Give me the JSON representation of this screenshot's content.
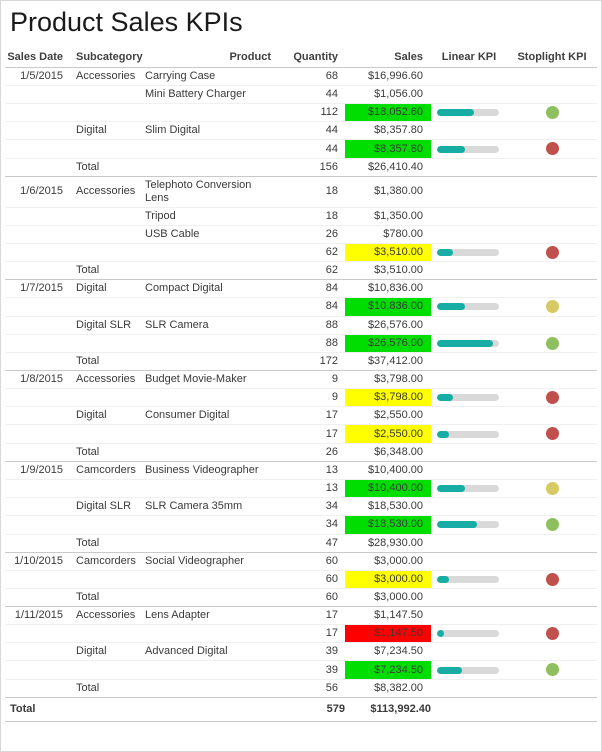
{
  "title": "Product Sales KPIs",
  "columns": [
    {
      "key": "date",
      "label": "Sales Date"
    },
    {
      "key": "subcat",
      "label": "Subcategory"
    },
    {
      "key": "product",
      "label": "Product"
    },
    {
      "key": "qty",
      "label": "Quantity"
    },
    {
      "key": "sales",
      "label": "Sales"
    },
    {
      "key": "linear",
      "label": "Linear KPI"
    },
    {
      "key": "stoplight",
      "label": "Stoplight KPI"
    }
  ],
  "colors": {
    "sales_green": "#00dd00",
    "sales_yellow": "#ffff00",
    "sales_red": "#ff0000",
    "bar_fill": "#17ada4",
    "bar_track": "#d9d9d9",
    "dot_green": "#8ec05f",
    "dot_yellow": "#d8ca63",
    "dot_red": "#c0504d"
  },
  "total_label": "Total",
  "groups": [
    {
      "date": "1/5/2015",
      "subgroups": [
        {
          "subcategory": "Accessories",
          "products": [
            {
              "name": "Carrying Case",
              "qty": "68",
              "sales": "$16,996.60"
            },
            {
              "name": "Mini Battery Charger",
              "qty": "44",
              "sales": "$1,056.00"
            }
          ],
          "subtotal": {
            "qty": "112",
            "sales": "$18,052.60",
            "sales_bg": "green",
            "bar_pct": 60,
            "dot": "green"
          }
        },
        {
          "subcategory": "Digital",
          "products": [
            {
              "name": "Slim Digital",
              "qty": "44",
              "sales": "$8,357.80"
            }
          ],
          "subtotal": {
            "qty": "44",
            "sales": "$8,357.80",
            "sales_bg": "green",
            "bar_pct": 45,
            "dot": "red"
          }
        }
      ],
      "total": {
        "qty": "156",
        "sales": "$26,410.40"
      }
    },
    {
      "date": "1/6/2015",
      "subgroups": [
        {
          "subcategory": "Accessories",
          "products": [
            {
              "name": "Telephoto Conversion Lens",
              "qty": "18",
              "sales": "$1,380.00"
            },
            {
              "name": "Tripod",
              "qty": "18",
              "sales": "$1,350.00"
            },
            {
              "name": "USB Cable",
              "qty": "26",
              "sales": "$780.00"
            }
          ],
          "subtotal": {
            "qty": "62",
            "sales": "$3,510.00",
            "sales_bg": "yellow",
            "bar_pct": 25,
            "dot": "red"
          }
        }
      ],
      "total": {
        "qty": "62",
        "sales": "$3,510.00"
      }
    },
    {
      "date": "1/7/2015",
      "subgroups": [
        {
          "subcategory": "Digital",
          "products": [
            {
              "name": "Compact Digital",
              "qty": "84",
              "sales": "$10,836.00"
            }
          ],
          "subtotal": {
            "qty": "84",
            "sales": "$10,836.00",
            "sales_bg": "green",
            "bar_pct": 45,
            "dot": "yellow"
          }
        },
        {
          "subcategory": "Digital SLR",
          "products": [
            {
              "name": "SLR Camera",
              "qty": "88",
              "sales": "$26,576.00"
            }
          ],
          "subtotal": {
            "qty": "88",
            "sales": "$26,576.00",
            "sales_bg": "green",
            "bar_pct": 90,
            "dot": "green"
          }
        }
      ],
      "total": {
        "qty": "172",
        "sales": "$37,412.00"
      }
    },
    {
      "date": "1/8/2015",
      "subgroups": [
        {
          "subcategory": "Accessories",
          "products": [
            {
              "name": "Budget Movie-Maker",
              "qty": "9",
              "sales": "$3,798.00"
            }
          ],
          "subtotal": {
            "qty": "9",
            "sales": "$3,798.00",
            "sales_bg": "yellow",
            "bar_pct": 25,
            "dot": "red"
          }
        },
        {
          "subcategory": "Digital",
          "products": [
            {
              "name": "Consumer Digital",
              "qty": "17",
              "sales": "$2,550.00"
            }
          ],
          "subtotal": {
            "qty": "17",
            "sales": "$2,550.00",
            "sales_bg": "yellow",
            "bar_pct": 20,
            "dot": "red"
          }
        }
      ],
      "total": {
        "qty": "26",
        "sales": "$6,348.00"
      }
    },
    {
      "date": "1/9/2015",
      "subgroups": [
        {
          "subcategory": "Camcorders",
          "products": [
            {
              "name": "Business Videographer",
              "qty": "13",
              "sales": "$10,400.00"
            }
          ],
          "subtotal": {
            "qty": "13",
            "sales": "$10,400.00",
            "sales_bg": "green",
            "bar_pct": 45,
            "dot": "yellow"
          }
        },
        {
          "subcategory": "Digital SLR",
          "products": [
            {
              "name": "SLR Camera 35mm",
              "qty": "34",
              "sales": "$18,530.00"
            }
          ],
          "subtotal": {
            "qty": "34",
            "sales": "$18,530.00",
            "sales_bg": "green",
            "bar_pct": 65,
            "dot": "green"
          }
        }
      ],
      "total": {
        "qty": "47",
        "sales": "$28,930.00"
      }
    },
    {
      "date": "1/10/2015",
      "subgroups": [
        {
          "subcategory": "Camcorders",
          "products": [
            {
              "name": "Social Videographer",
              "qty": "60",
              "sales": "$3,000.00"
            }
          ],
          "subtotal": {
            "qty": "60",
            "sales": "$3,000.00",
            "sales_bg": "yellow",
            "bar_pct": 20,
            "dot": "red"
          }
        }
      ],
      "total": {
        "qty": "60",
        "sales": "$3,000.00"
      }
    },
    {
      "date": "1/11/2015",
      "subgroups": [
        {
          "subcategory": "Accessories",
          "products": [
            {
              "name": "Lens Adapter",
              "qty": "17",
              "sales": "$1,147.50"
            }
          ],
          "subtotal": {
            "qty": "17",
            "sales": "$1,147.50",
            "sales_bg": "red",
            "bar_pct": 12,
            "dot": "red"
          }
        },
        {
          "subcategory": "Digital",
          "products": [
            {
              "name": "Advanced Digital",
              "qty": "39",
              "sales": "$7,234.50"
            }
          ],
          "subtotal": {
            "qty": "39",
            "sales": "$7,234.50",
            "sales_bg": "green",
            "bar_pct": 40,
            "dot": "green"
          }
        }
      ],
      "total": {
        "qty": "56",
        "sales": "$8,382.00"
      }
    }
  ],
  "grand_total": {
    "label": "Total",
    "qty": "579",
    "sales": "$113,992.40"
  }
}
